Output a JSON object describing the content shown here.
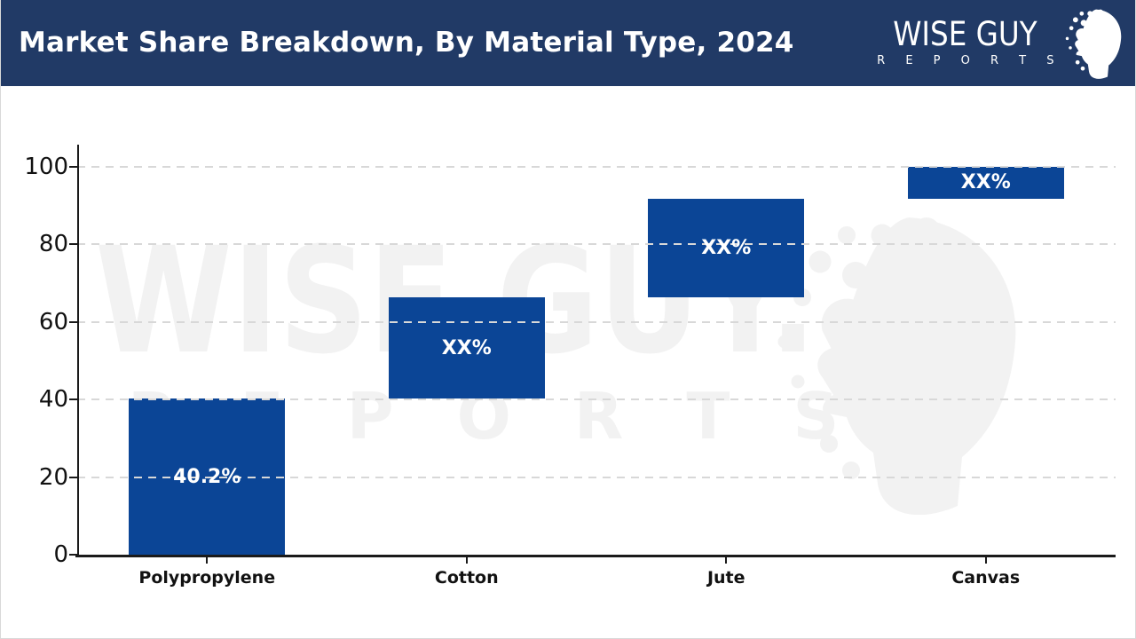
{
  "header": {
    "title": "Market Share Breakdown, By Material Type, 2024",
    "bg_color": "#213a66",
    "logo": {
      "line1": "WISE GUY",
      "line2": "R E P O R T S"
    }
  },
  "watermark": {
    "line1": "WISE GUY.",
    "line2": "R E P O R T S",
    "color": "#f2f2f2"
  },
  "chart_data": {
    "type": "bar",
    "variant": "waterfall",
    "title": "Market Share Breakdown, By Material Type, 2024",
    "categories": [
      "Polypropylene",
      "Cotton",
      "Jute",
      "Canvas"
    ],
    "segments": [
      {
        "category": "Polypropylene",
        "start": 0,
        "end": 40.2,
        "value_label": "40.2%"
      },
      {
        "category": "Cotton",
        "start": 40.2,
        "end": 66.2,
        "value_label": "XX%"
      },
      {
        "category": "Jute",
        "start": 66.2,
        "end": 91.6,
        "value_label": "XX%"
      },
      {
        "category": "Canvas",
        "start": 91.6,
        "end": 100,
        "value_label": "XX%"
      }
    ],
    "ylim": [
      0,
      105
    ],
    "yticks": [
      0,
      20,
      40,
      60,
      80,
      100
    ],
    "grid": "horizontal-dashed",
    "legend": "none",
    "bar_color": "#0b4596",
    "value_label_color": "#ffffff",
    "grid_color": "#d8d8d8",
    "axis_color": "#1a1a1a",
    "tick_label_color": "#111111"
  }
}
